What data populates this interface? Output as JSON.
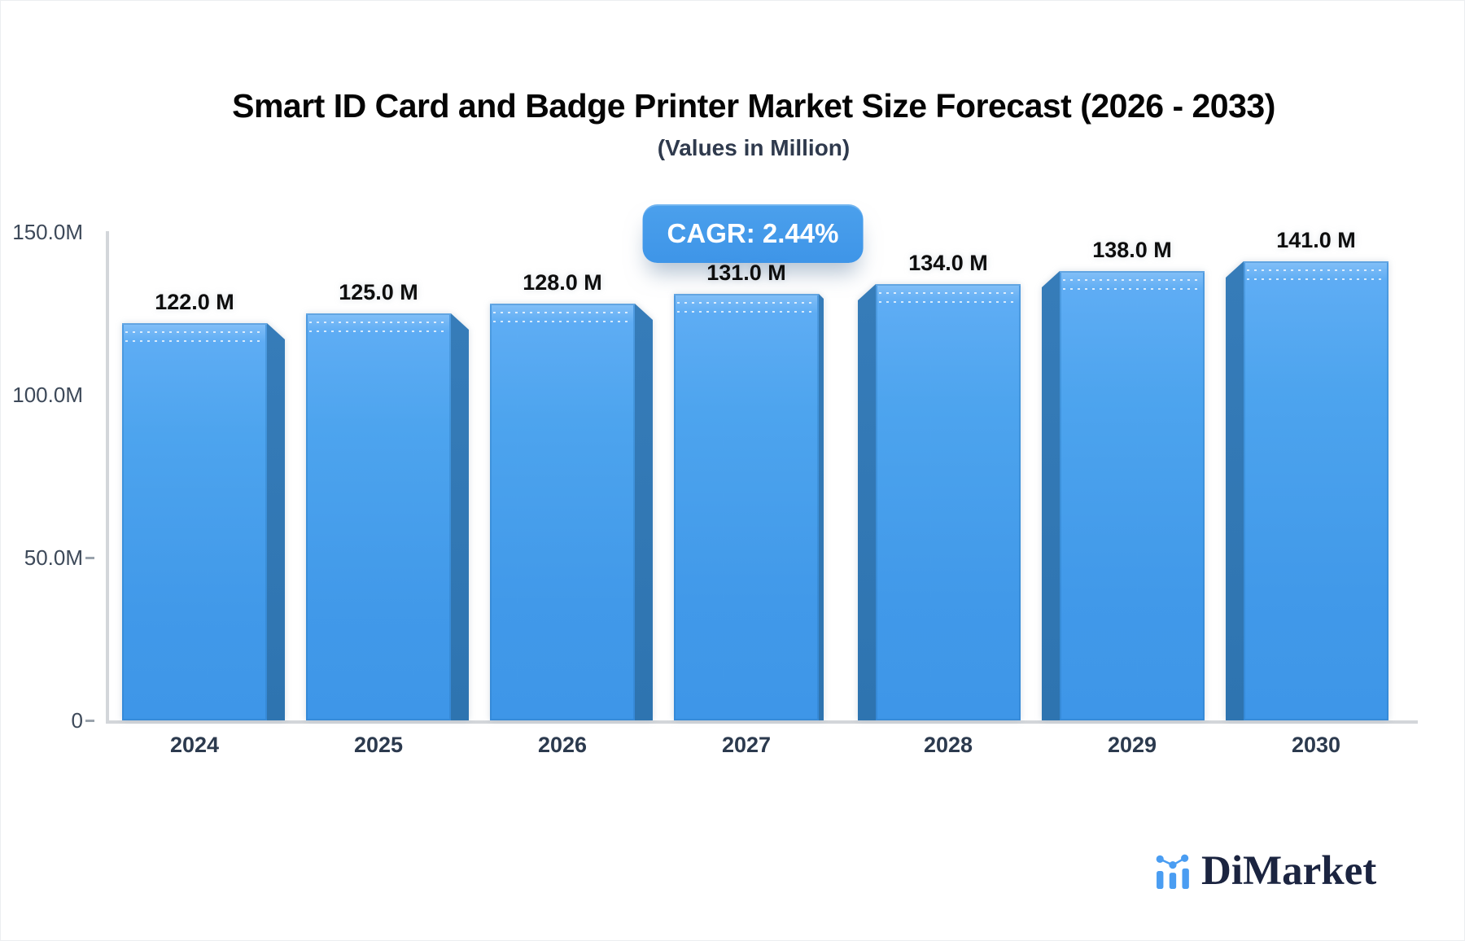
{
  "chart_data": {
    "type": "bar",
    "title": "Smart ID Card and Badge Printer Market Size Forecast (2026 - 2033)",
    "subtitle": "(Values in Million)",
    "categories": [
      "2024",
      "2025",
      "2026",
      "2027",
      "2028",
      "2029",
      "2030"
    ],
    "values": [
      122,
      125,
      128,
      131,
      134,
      138,
      141
    ],
    "value_labels": [
      "122.0 M",
      "125.0 M",
      "128.0 M",
      "131.0 M",
      "134.0 M",
      "138.0 M",
      "141.0 M"
    ],
    "cagr_label": "CAGR: 2.44%",
    "y_axis": {
      "range": [
        0,
        150
      ],
      "ticks": [
        {
          "value": 150,
          "label": "150.0M",
          "dash": false
        },
        {
          "value": 100,
          "label": "100.0M",
          "dash": false
        },
        {
          "value": 50,
          "label": "50.0M",
          "dash": true
        },
        {
          "value": 0,
          "label": "0",
          "dash": true
        }
      ]
    },
    "grid": false,
    "legend": false,
    "bar_style": "3d-beveled",
    "colors": {
      "bar_face_top": "#61aef5",
      "bar_face_bottom": "#3e96e8",
      "bar_side": "#2e74b0",
      "badge_bg_top": "#4ba0ec",
      "badge_bg_bottom": "#3e95e8",
      "badge_text": "#ffffff",
      "axis_line": "#d3d6da",
      "tick_mark": "#9aa3ac",
      "y_label": "#3d4959",
      "x_label": "#2c3a4e",
      "value_label": "#0d0d0d",
      "title": "#050505",
      "subtitle": "#2f3a4d",
      "logo_text": "#1b2440",
      "logo_accent": "#4a9df2",
      "background": "#ffffff"
    }
  },
  "logo": {
    "text": "DiMarket",
    "icon": "bar-chart-trend-icon"
  }
}
